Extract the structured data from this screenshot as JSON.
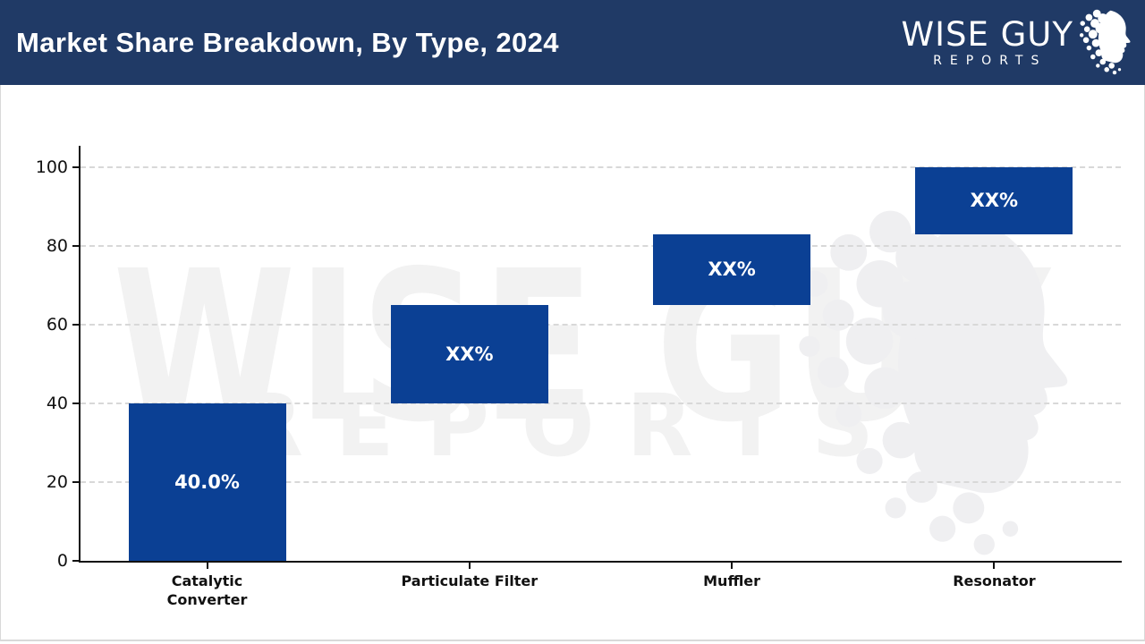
{
  "header": {
    "title": "Market Share Breakdown, By Type, 2024",
    "bg_color": "#203a66",
    "logo": {
      "line1": "WISE GUY",
      "line2": "REPORTS"
    }
  },
  "watermark": {
    "line1": "WISE GUY",
    "line2": "REPORTS"
  },
  "chart_data": {
    "type": "bar",
    "subtype": "waterfall",
    "title": "Market Share Breakdown, By Type, 2024",
    "xlabel": "",
    "ylabel": "",
    "categories": [
      "Catalytic Converter",
      "Particulate Filter",
      "Muffler",
      "Resonator"
    ],
    "categories_wrapped": [
      [
        "Catalytic",
        "Converter"
      ],
      [
        "Particulate Filter"
      ],
      [
        "Muffler"
      ],
      [
        "Resonator"
      ]
    ],
    "series": [
      {
        "starts": [
          0,
          40,
          65,
          83
        ],
        "ends": [
          40,
          65,
          83,
          100
        ],
        "values": [
          40,
          25,
          18,
          17
        ]
      }
    ],
    "bar_labels": [
      "40.0%",
      "XX%",
      "XX%",
      "XX%"
    ],
    "yticks": [
      0,
      20,
      40,
      60,
      80,
      100
    ],
    "ylim": [
      0,
      105
    ],
    "grid": "horizontal-dashed",
    "legend": "none",
    "bar_color": "#0b4094",
    "bar_label_color": "#ffffff",
    "axis_color": "#111111",
    "gridline_color": "#d8d8d8"
  }
}
